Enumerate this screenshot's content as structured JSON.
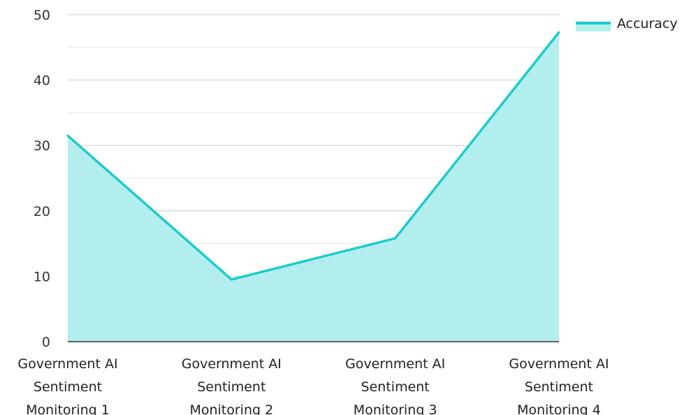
{
  "chart_data": {
    "type": "area",
    "categories": [
      "Government AI Sentiment Monitoring 1",
      "Government AI Sentiment Monitoring 2",
      "Government AI Sentiment Monitoring 3",
      "Government AI Sentiment Monitoring 4"
    ],
    "category_lines": [
      [
        "Government AI",
        "Sentiment",
        "Monitoring 1"
      ],
      [
        "Government AI",
        "Sentiment",
        "Monitoring 2"
      ],
      [
        "Government AI",
        "Sentiment",
        "Monitoring 3"
      ],
      [
        "Government AI",
        "Sentiment",
        "Monitoring 4"
      ]
    ],
    "series": [
      {
        "name": "Accuracy",
        "values": [
          31.5,
          9.5,
          15.8,
          47.3
        ]
      }
    ],
    "ylim": [
      0,
      50
    ],
    "yticks": [
      0,
      10,
      20,
      30,
      40,
      50
    ],
    "minor_gridlines": true,
    "legend": "top-right",
    "colors": {
      "line": "#1ecbcb",
      "fill": "#b2eeee",
      "grid_major": "#cccccc",
      "grid_minor": "#e6e6e6",
      "axis": "#333333"
    }
  }
}
